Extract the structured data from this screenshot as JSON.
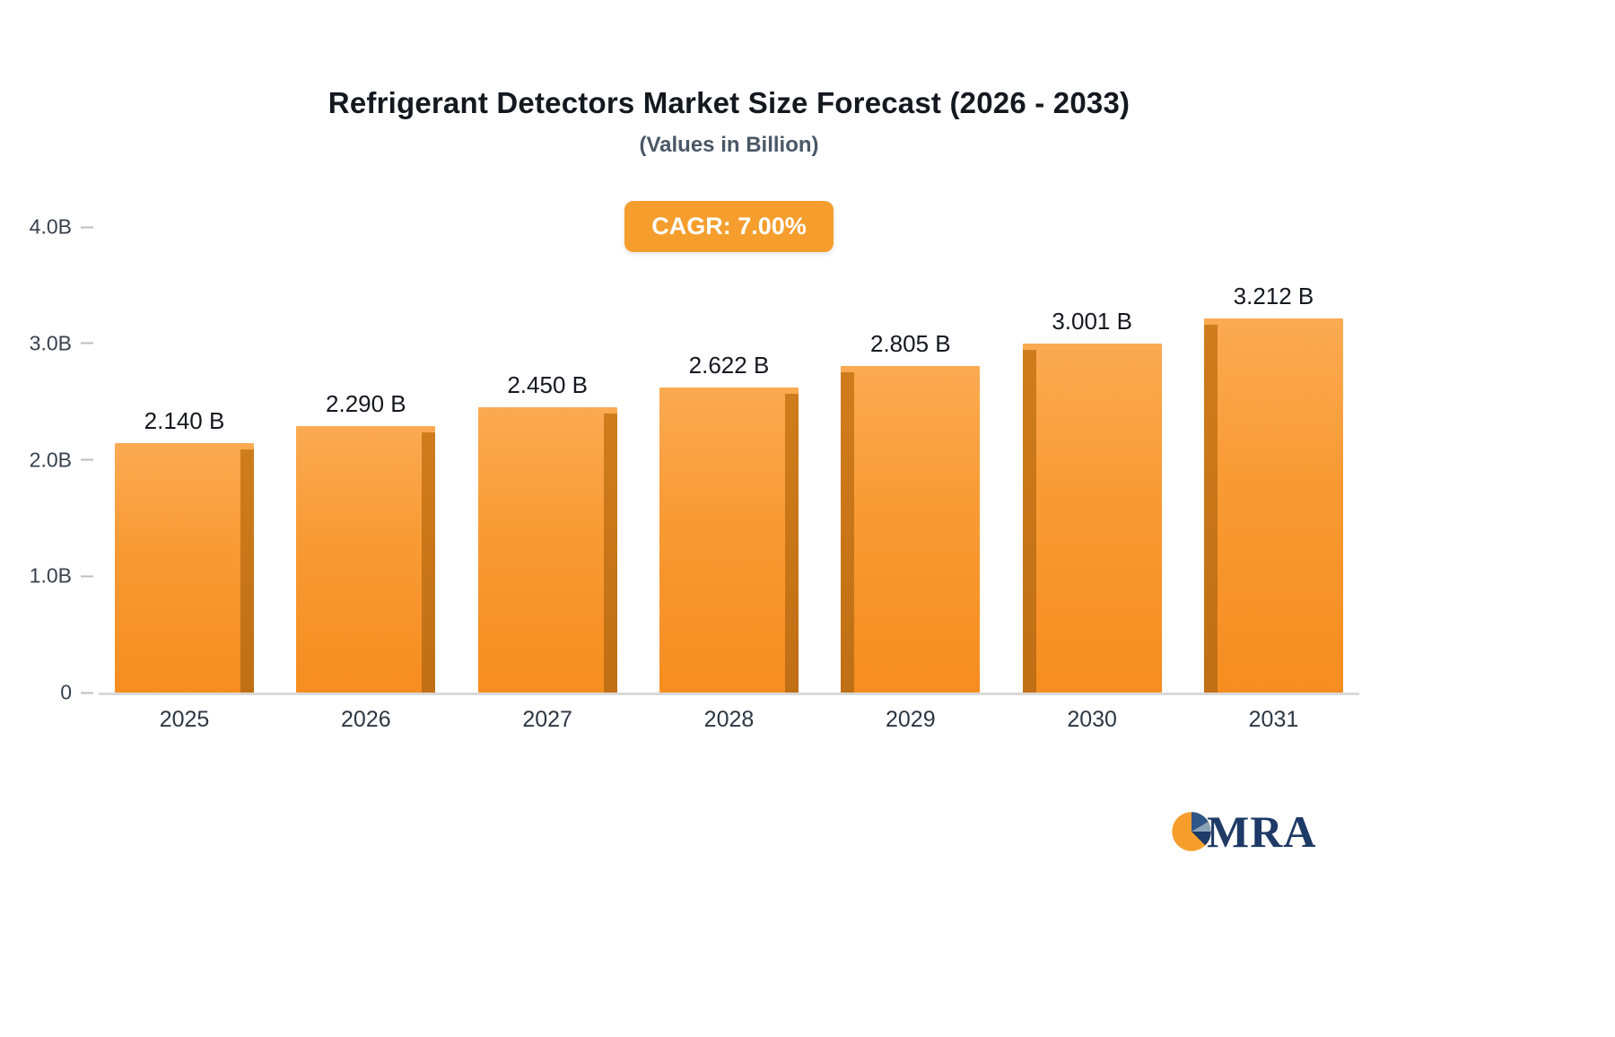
{
  "chart_data": {
    "type": "bar",
    "title": "Refrigerant Detectors Market Size Forecast (2026 - 2033)",
    "subtitle": "(Values in Billion)",
    "badge": "CAGR: 7.00%",
    "categories": [
      "2025",
      "2026",
      "2027",
      "2028",
      "2029",
      "2030",
      "2031"
    ],
    "values": [
      2.14,
      2.29,
      2.45,
      2.622,
      2.805,
      3.001,
      3.212
    ],
    "value_labels": [
      "2.140 B",
      "2.290 B",
      "2.450 B",
      "2.622 B",
      "2.805 B",
      "3.001 B",
      "3.212 B"
    ],
    "ylim": [
      0,
      4.0
    ],
    "yticks": [
      {
        "label": "4.0B",
        "value": 4.0
      },
      {
        "label": "3.0B",
        "value": 3.0
      },
      {
        "label": "2.0B",
        "value": 2.0
      },
      {
        "label": "1.0B",
        "value": 1.0
      },
      {
        "label": "0",
        "value": 0.0
      }
    ],
    "grid": false,
    "legend": "none",
    "bar_color": "#f89a33",
    "bar_shade_color": "#c06f15",
    "badge_color": "#f59e2e"
  },
  "logo": {
    "text": "MRA"
  }
}
